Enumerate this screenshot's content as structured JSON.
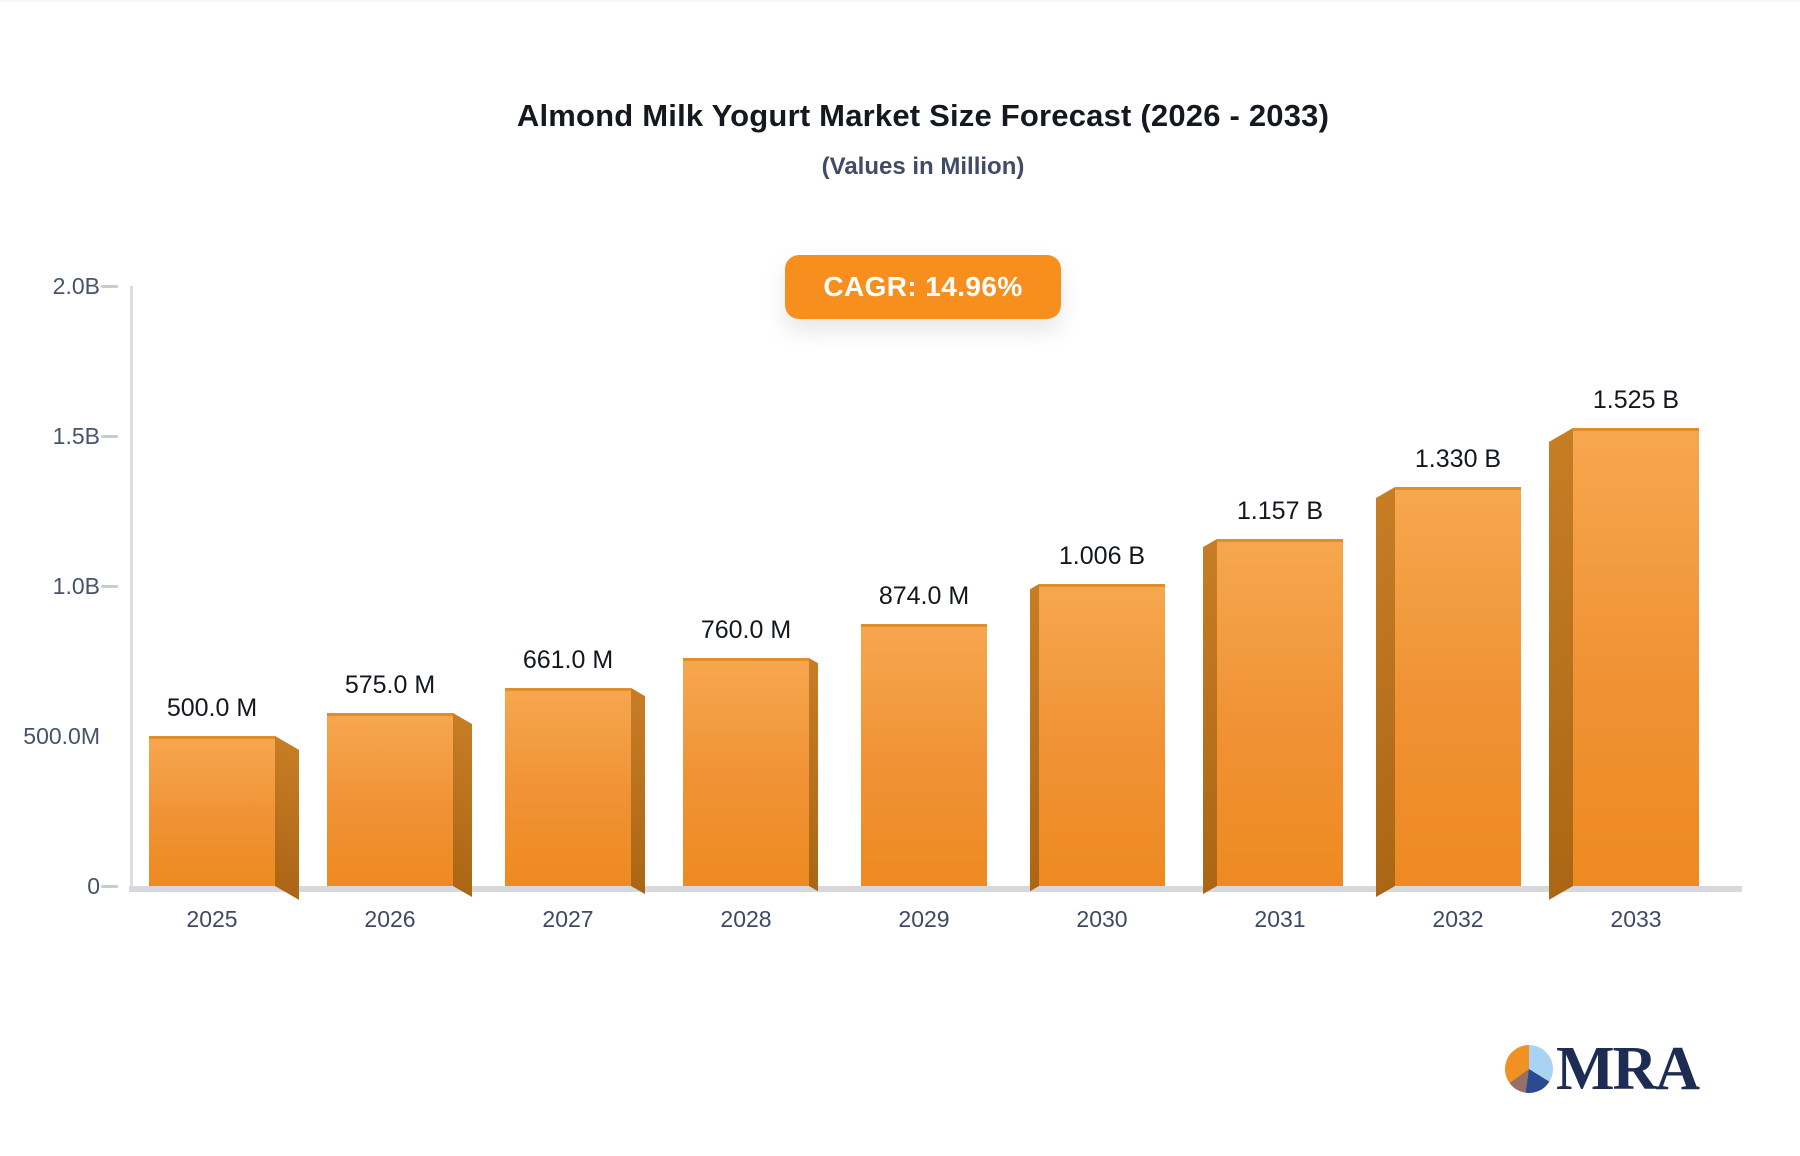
{
  "header": {
    "title": "Almond Milk Yogurt Market Size Forecast (2026 - 2033)",
    "subtitle": "(Values in Million)",
    "cagr_badge": "CAGR: 14.96%"
  },
  "chart_data": {
    "type": "bar",
    "title": "Almond Milk Yogurt Market Size Forecast (2026 - 2033)",
    "subtitle": "(Values in Million)",
    "cagr_percent": 14.96,
    "categories": [
      "2025",
      "2026",
      "2027",
      "2028",
      "2029",
      "2030",
      "2031",
      "2032",
      "2033"
    ],
    "values_million": [
      500.0,
      575.0,
      661.0,
      760.0,
      874.0,
      1006.0,
      1157.0,
      1330.0,
      1525.0
    ],
    "bar_labels": [
      "500.0 M",
      "575.0 M",
      "661.0 M",
      "760.0 M",
      "874.0 M",
      "1.006 B",
      "1.157 B",
      "1.330 B",
      "1.525 B"
    ],
    "y_ticks": [
      {
        "value": 2000,
        "label": "2.0B"
      },
      {
        "value": 1500,
        "label": "1.5B"
      },
      {
        "value": 1000,
        "label": "1.0B"
      },
      {
        "value": 500,
        "label": "500.0M"
      },
      {
        "value": 0,
        "label": "0"
      }
    ],
    "ylim": [
      0,
      2000
    ],
    "grid": false,
    "legend": false,
    "style": "pseudo-3d-bars",
    "colors": {
      "bar_front_top": "#f6a74e",
      "bar_front_bottom": "#ee8a20",
      "bar_side_top": "#c77d24",
      "bar_side_bottom": "#ab6615",
      "axis_line": "#d6d8db",
      "tick_text": "#47536a",
      "label_text": "#13181e"
    }
  },
  "badge_color": "#f78f1e",
  "logo": {
    "text": "MRA",
    "icon": "pie-chart-logo-icon",
    "pie_segments": [
      {
        "color": "#a9d3f2",
        "from_deg": 0,
        "to_deg": 122
      },
      {
        "color": "#2a4b8f",
        "from_deg": 122,
        "to_deg": 188
      },
      {
        "color": "#957067",
        "from_deg": 188,
        "to_deg": 234
      },
      {
        "color": "#f19123",
        "from_deg": 234,
        "to_deg": 360
      }
    ],
    "text_color": "#1d2c52"
  }
}
